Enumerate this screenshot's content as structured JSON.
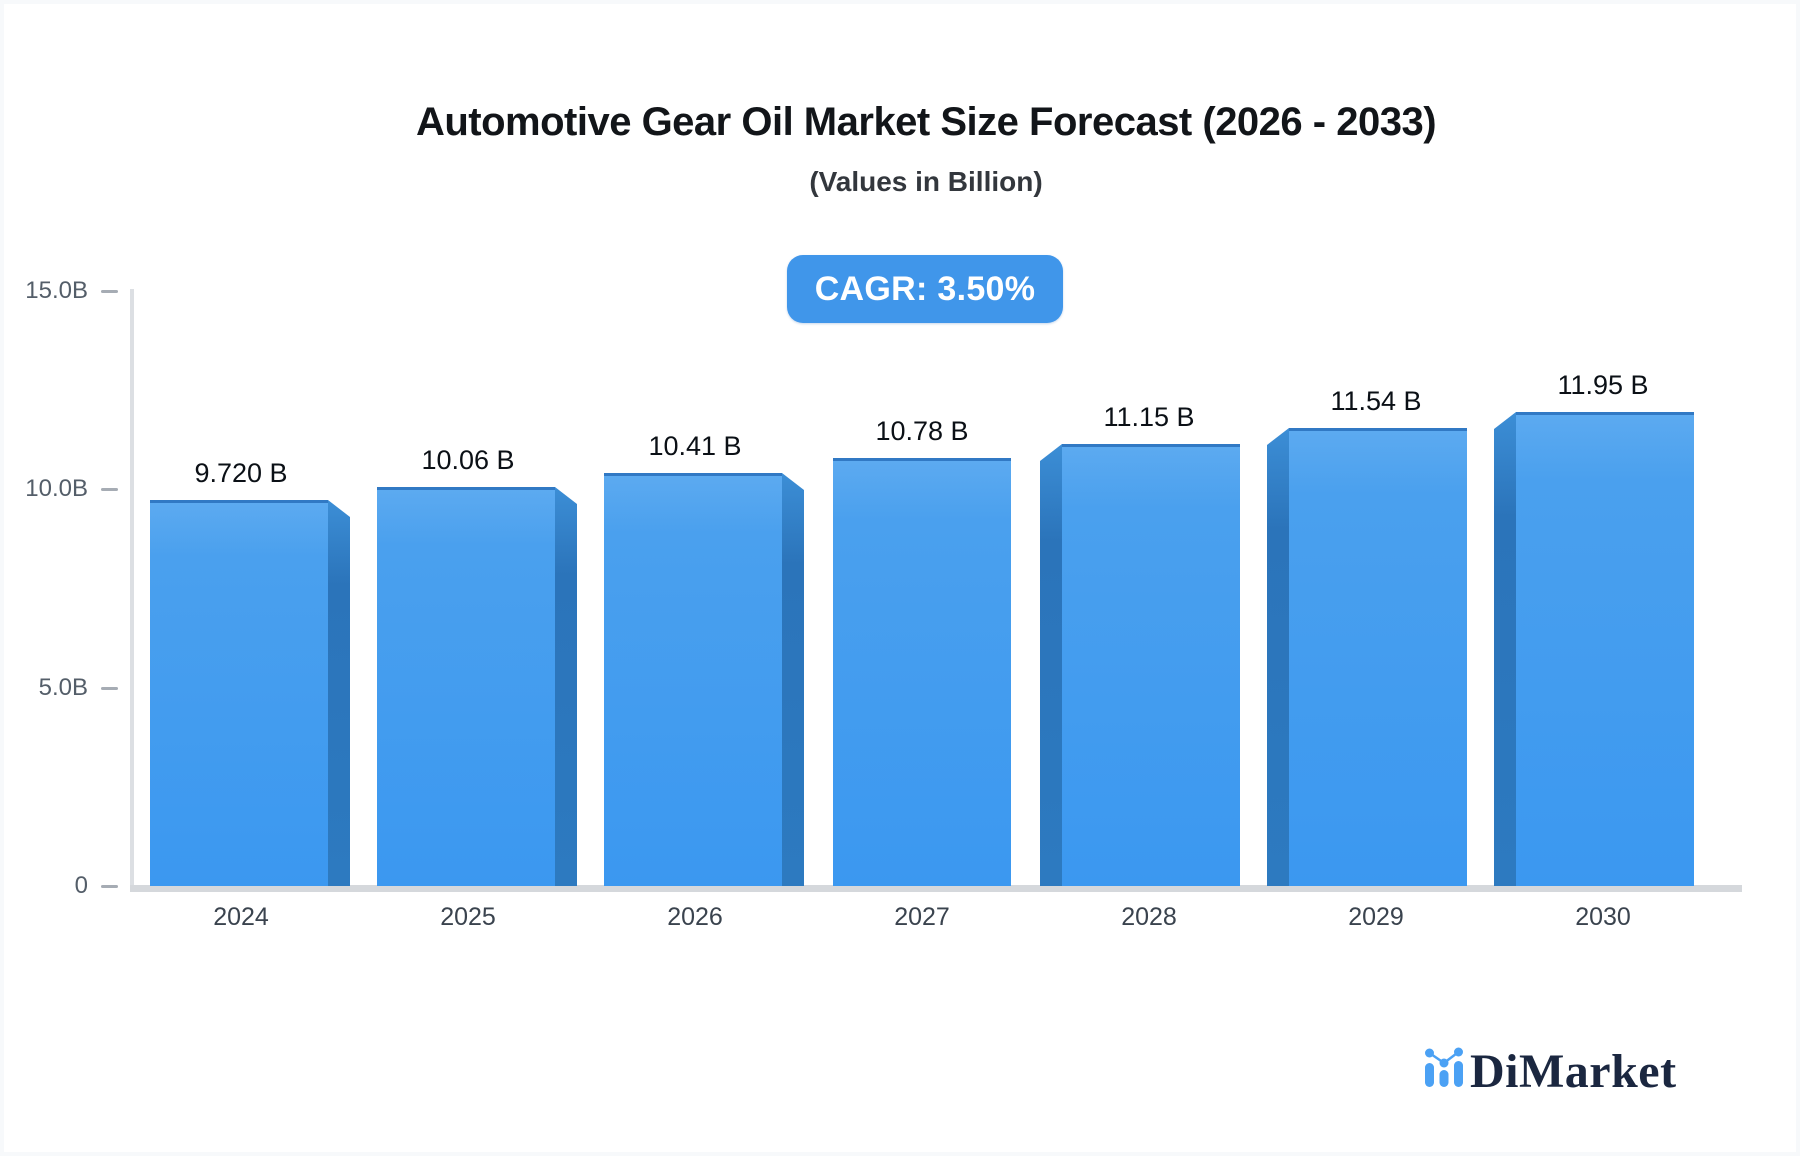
{
  "header": {
    "title": "Automotive Gear Oil Market Size Forecast (2026 - 2033)",
    "subtitle": "(Values in Billion)",
    "cagr_badge": "CAGR: 3.50%"
  },
  "footer": {
    "brand": "DiMarket"
  },
  "colors": {
    "bar_face_top": "#5caaf0",
    "bar_face_bottom": "#3b98f0",
    "bar_side": "#2c78be",
    "bar_top_edge": "#3179c4",
    "badge_bg": "#4096ea",
    "brand_blue": "#4BA1F4",
    "brand_navy": "#1b2740",
    "axis_gray": "#dcdfe3",
    "baseline_gray": "#d5d8dc"
  },
  "chart_data": {
    "type": "bar",
    "title": "Automotive Gear Oil Market Size Forecast (2026 - 2033)",
    "subtitle": "(Values in Billion)",
    "cagr_label": "CAGR: 3.50%",
    "categories": [
      "2024",
      "2025",
      "2026",
      "2027",
      "2028",
      "2029",
      "2030"
    ],
    "values": [
      9.72,
      10.06,
      10.41,
      10.78,
      11.15,
      11.54,
      11.95
    ],
    "value_labels": [
      "9.720 B",
      "10.06 B",
      "10.41 B",
      "10.78 B",
      "11.15 B",
      "11.54 B",
      "11.95 B"
    ],
    "xlabel": "",
    "ylabel": "",
    "ylim": [
      0,
      15
    ],
    "yticks": [
      {
        "value": 15,
        "label": "15.0B"
      },
      {
        "value": 10,
        "label": "10.0B"
      },
      {
        "value": 5,
        "label": "5.0B"
      },
      {
        "value": 0,
        "label": "0"
      }
    ],
    "grid": false,
    "legend": false,
    "style": "pseudo-3d bars, side faces extruded toward center bar"
  }
}
